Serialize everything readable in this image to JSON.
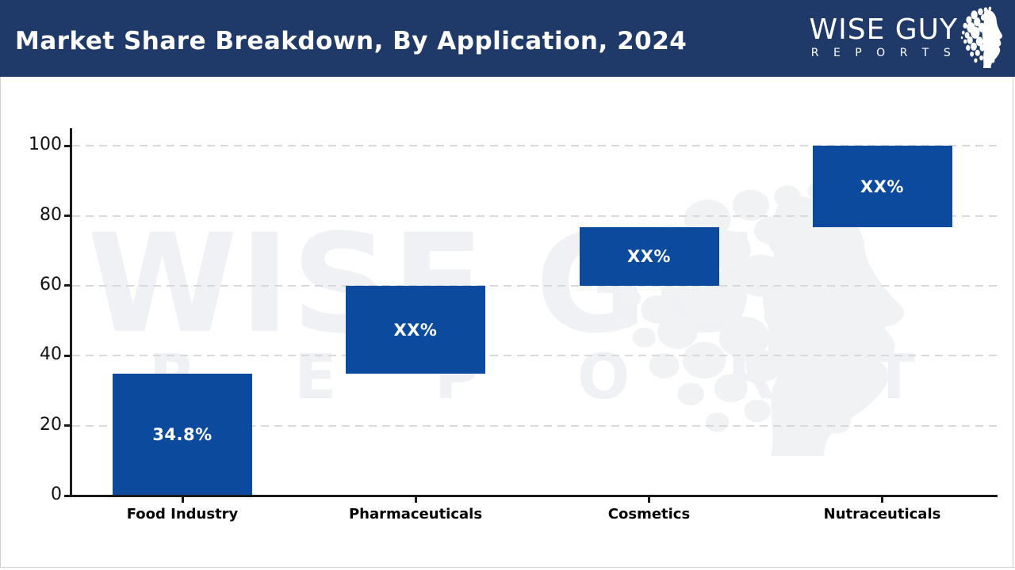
{
  "header": {
    "title": "Market Share Breakdown, By Application, 2024",
    "logo": {
      "name": "WISE GUY",
      "tagline": "R E P O R T S"
    }
  },
  "watermark": {
    "name": "WISE GUY",
    "tagline": "R E P O R T S"
  },
  "chart_data": {
    "type": "bar",
    "subtype": "waterfall",
    "title": "Market Share Breakdown, By Application, 2024",
    "categories": [
      "Food Industry",
      "Pharmaceuticals",
      "Cosmetics",
      "Nutraceuticals"
    ],
    "bars": [
      {
        "category": "Food Industry",
        "start": 0,
        "end": 34.8,
        "increment": 34.8,
        "label": "34.8%"
      },
      {
        "category": "Pharmaceuticals",
        "start": 34.8,
        "end": 60,
        "increment": 25.2,
        "label": "XX%"
      },
      {
        "category": "Cosmetics",
        "start": 60,
        "end": 76.8,
        "increment": 16.8,
        "label": "XX%"
      },
      {
        "category": "Nutraceuticals",
        "start": 76.8,
        "end": 100,
        "increment": 23.2,
        "label": "XX%"
      }
    ],
    "xlabel": "",
    "ylabel": "",
    "yticks": [
      0,
      20,
      40,
      60,
      80,
      100
    ],
    "ylim": [
      0,
      105
    ],
    "grid": "dashed-horizontal",
    "legend": "none"
  },
  "colors": {
    "header_bg": "#1f3a68",
    "bar": "#0b4a9d",
    "bar_label": "#ffffff",
    "watermark": "#eff1f4",
    "grid": "#d9d9d9",
    "axis": "#1a1a1a",
    "panel_border": "#cfcfcf"
  }
}
